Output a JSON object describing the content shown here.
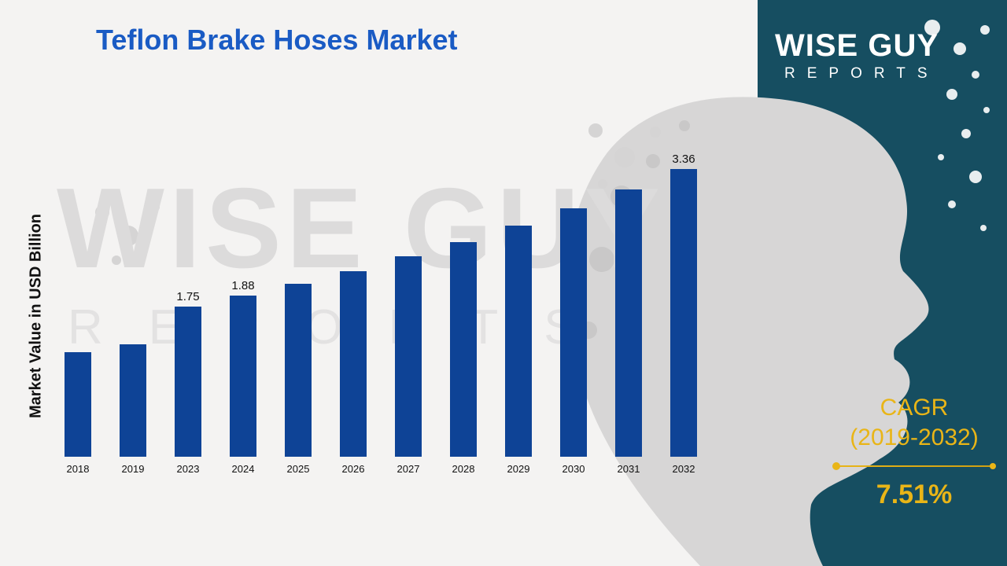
{
  "page": {
    "title": "Teflon Brake Hoses Market"
  },
  "colors": {
    "title_blue": "#1a5bc4",
    "bar_blue": "#0e4396",
    "panel_teal": "#164e61",
    "accent_gold": "#e9b517",
    "watermark_gray": "#dcdbdb",
    "silhouette_gray": "#d7d6d6"
  },
  "chart_data": {
    "type": "bar",
    "title": "Teflon Brake Hoses Market",
    "xlabel": "",
    "ylabel": "Market Value in USD Billion",
    "unit": "USD Billion",
    "categories": [
      "2018",
      "2019",
      "2023",
      "2024",
      "2025",
      "2026",
      "2027",
      "2028",
      "2029",
      "2030",
      "2031",
      "2032"
    ],
    "values": [
      1.22,
      1.31,
      1.75,
      1.88,
      2.02,
      2.17,
      2.34,
      2.51,
      2.7,
      2.9,
      3.12,
      3.36
    ],
    "value_labels": [
      "",
      "",
      "1.75",
      "1.88",
      "",
      "",
      "",
      "",
      "",
      "",
      "",
      "3.36"
    ],
    "ylim": [
      0,
      3.36
    ],
    "grid": false,
    "legend": null,
    "bar_color": "#0e4396"
  },
  "logo": {
    "line1": "WISE GUY",
    "line2": "REPORTS"
  },
  "watermark": {
    "line1": "WISE GUY",
    "line2": "REPORTS"
  },
  "cagr": {
    "label": "CAGR",
    "range": "(2019-2032)",
    "value": "7.51%"
  }
}
